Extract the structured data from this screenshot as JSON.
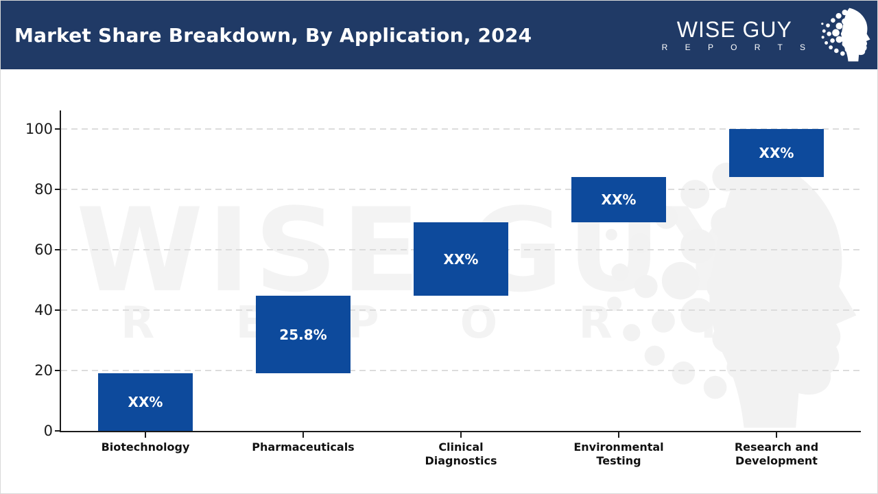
{
  "header": {
    "title": "Market Share Breakdown, By Application, 2024",
    "logo": {
      "name": "WISE GUY",
      "subtitle": "R E P O R T S"
    }
  },
  "watermark": {
    "name": "WISE GUY",
    "subtitle": "R E P O R T S"
  },
  "chart_data": {
    "type": "bar",
    "subtype": "waterfall",
    "title": "Market Share Breakdown, By Application, 2024",
    "categories": [
      "Biotechnology",
      "Pharmaceuticals",
      "Clinical Diagnostics",
      "Environmental Testing",
      "Research and Development"
    ],
    "segment_starts": [
      0,
      19,
      44.8,
      69,
      84
    ],
    "values": [
      19,
      25.8,
      24.2,
      15,
      16
    ],
    "bar_labels": [
      "XX%",
      "25.8%",
      "XX%",
      "XX%",
      "XX%"
    ],
    "yticks": [
      0,
      20,
      40,
      60,
      80,
      100
    ],
    "ylim": [
      0,
      105
    ],
    "xlabel": "",
    "ylabel": "",
    "grid": "horizontal-dashed",
    "legend": "none",
    "bar_color": "#0d4a9c",
    "bar_label_color": "#ffffff",
    "axis_color": "#1a1a1a",
    "grid_color": "#dcdcdc"
  }
}
